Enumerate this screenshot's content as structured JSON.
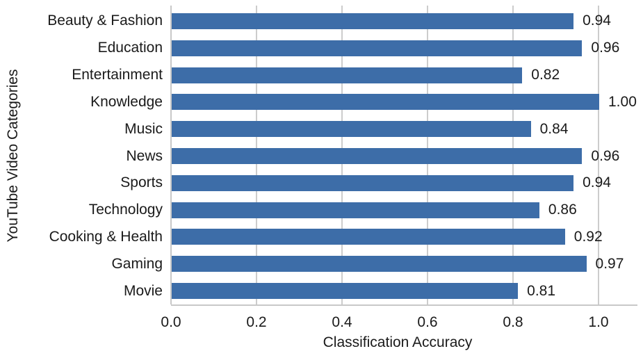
{
  "chart_data": {
    "type": "bar",
    "orientation": "horizontal",
    "categories": [
      "Beauty & Fashion",
      "Education",
      "Entertainment",
      "Knowledge",
      "Music",
      "News",
      "Sports",
      "Technology",
      "Cooking & Health",
      "Gaming",
      "Movie"
    ],
    "values": [
      0.94,
      0.96,
      0.82,
      1.0,
      0.84,
      0.96,
      0.94,
      0.86,
      0.92,
      0.97,
      0.81
    ],
    "value_labels": [
      "0.94",
      "0.96",
      "0.82",
      "1.00",
      "0.84",
      "0.96",
      "0.94",
      "0.86",
      "0.92",
      "0.97",
      "0.81"
    ],
    "xlabel": "Classification Accuracy",
    "ylabel": "YouTube Video Categories",
    "xticks": [
      "0.0",
      "0.2",
      "0.4",
      "0.6",
      "0.8",
      "1.0"
    ],
    "xtick_values": [
      0.0,
      0.2,
      0.4,
      0.6,
      0.8,
      1.0
    ],
    "xlim": [
      0.0,
      1.09
    ],
    "grid": true,
    "legend": false,
    "colors": {
      "bar": "#3D6DA8",
      "grid": "#CCCCCC",
      "spine": "#C8C8C8",
      "text": "#1A1A1A",
      "background": "#FFFFFF"
    }
  }
}
